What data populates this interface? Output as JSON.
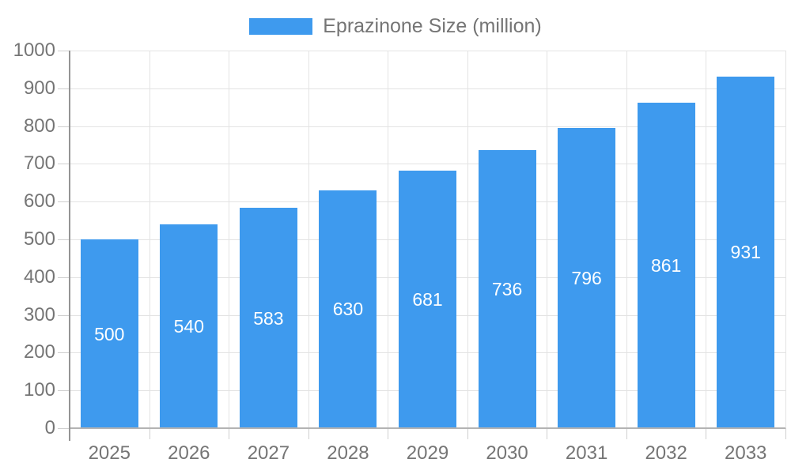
{
  "legend": {
    "label": "Eprazinone Size (million)"
  },
  "colors": {
    "bar": "#3E9AEE",
    "bar_label_text": "#ffffff",
    "axis_text": "#757575",
    "grid_line": "#e3e3e3",
    "tick_line": "#cfcfcf",
    "y_axis_line": "#949494",
    "x_axis_line": "#b3b3b3",
    "background": "#ffffff"
  },
  "chart_data": {
    "type": "bar",
    "title": "",
    "xlabel": "",
    "ylabel": "",
    "categories": [
      "2025",
      "2026",
      "2027",
      "2028",
      "2029",
      "2030",
      "2031",
      "2032",
      "2033"
    ],
    "series": [
      {
        "name": "Eprazinone Size (million)",
        "values": [
          500,
          540,
          583,
          630,
          681,
          736,
          796,
          861,
          931
        ]
      }
    ],
    "value_labels": [
      500,
      540,
      583,
      630,
      681,
      736,
      796,
      861,
      931
    ],
    "value_label_position": "inside-center",
    "ylim": [
      0,
      1000
    ],
    "yticks": [
      0,
      100,
      200,
      300,
      400,
      500,
      600,
      700,
      800,
      900,
      1000
    ],
    "grid": true,
    "legend_position": "top-center"
  }
}
